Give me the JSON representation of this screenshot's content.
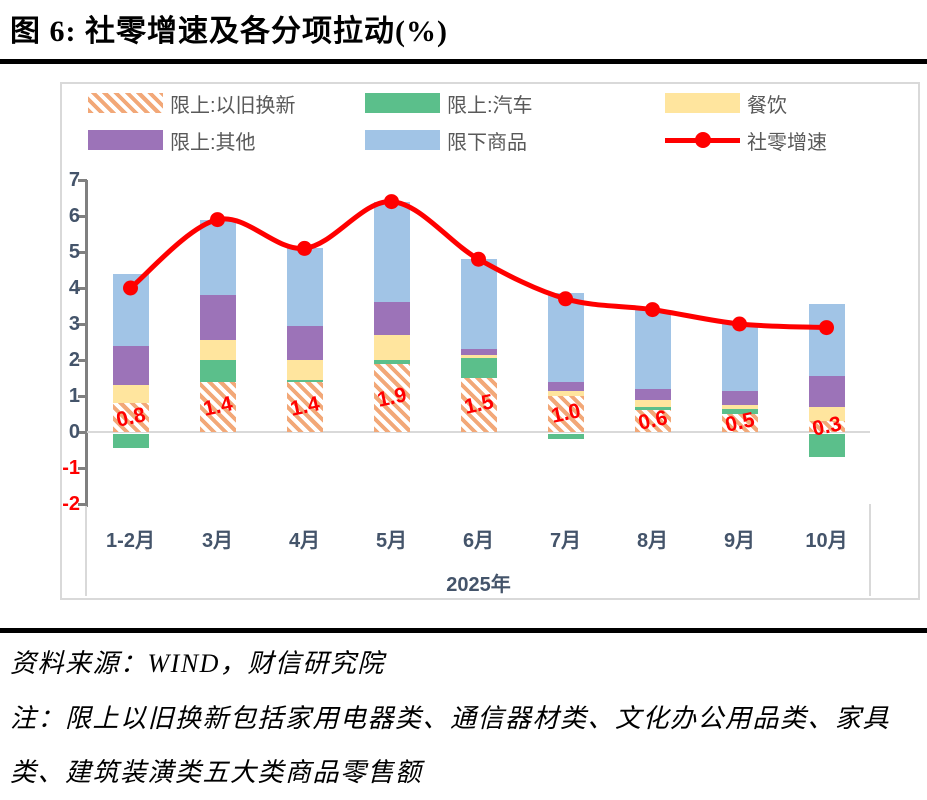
{
  "title": "图 6:  社零增速及各分项拉动(%)",
  "footer": {
    "source": "资料来源：WIND，财信研究院",
    "note": "注：限上以旧换新包括家用电器类、通信器材类、文化办公用品类、家具类、建筑装潢类五大类商品零售额"
  },
  "colors": {
    "hatch_stripe": "#F2A878",
    "green": "#5BBF8B",
    "yellow": "#FFE59E",
    "purple": "#9C73B8",
    "blue": "#A1C4E6",
    "red_line": "#FF0000",
    "axis_text": "#44546A",
    "neg_axis_text": "#FF0000",
    "legend_text": "#595959",
    "gridline": "#D9D9D9",
    "axis_line": "#808080"
  },
  "legend": {
    "items": [
      {
        "label": "限上:以旧换新",
        "swatch": "hatch",
        "color": "#F2A878"
      },
      {
        "label": "限上:汽车",
        "swatch": "solid",
        "color": "#5BBF8B"
      },
      {
        "label": "餐饮",
        "swatch": "solid",
        "color": "#FFE59E"
      },
      {
        "label": "限上:其他",
        "swatch": "solid",
        "color": "#9C73B8"
      },
      {
        "label": "限下商品",
        "swatch": "solid",
        "color": "#A1C4E6"
      },
      {
        "label": "社零增速",
        "swatch": "line",
        "color": "#FF0000"
      }
    ]
  },
  "chart_data": {
    "type": "bar",
    "subtype": "stacked-bars-with-smooth-line-overlay",
    "title": "社零增速及各分项拉动(%)",
    "categories": [
      "1-2月",
      "3月",
      "4月",
      "5月",
      "6月",
      "7月",
      "8月",
      "9月",
      "10月"
    ],
    "x_group_label": "2025年",
    "yticks": [
      7,
      6,
      5,
      4,
      3,
      2,
      1,
      0,
      -1,
      -2
    ],
    "ylim": [
      -2,
      7
    ],
    "grid": "zero-line-only",
    "legend_position": "top",
    "series": [
      {
        "name": "限上:以旧换新",
        "style": "hatched",
        "color": "#F2A878",
        "values": [
          0.8,
          1.4,
          1.4,
          1.9,
          1.5,
          1.0,
          0.6,
          0.5,
          0.3
        ]
      },
      {
        "name": "限上:汽车",
        "style": "solid",
        "color": "#5BBF8B",
        "values": [
          -0.4,
          0.6,
          0.05,
          0.1,
          0.55,
          -0.15,
          0.1,
          0.15,
          -0.65
        ]
      },
      {
        "name": "餐饮",
        "style": "solid",
        "color": "#FFE59E",
        "values": [
          0.5,
          0.55,
          0.55,
          0.7,
          0.1,
          0.15,
          0.2,
          0.1,
          0.4
        ]
      },
      {
        "name": "限上:其他",
        "style": "solid",
        "color": "#9C73B8",
        "values": [
          1.1,
          1.25,
          0.95,
          0.9,
          0.15,
          0.25,
          0.3,
          0.4,
          0.85
        ]
      },
      {
        "name": "限下商品",
        "style": "solid",
        "color": "#A1C4E6",
        "values": [
          2.0,
          2.1,
          2.15,
          2.8,
          2.5,
          2.45,
          2.2,
          1.85,
          2.0
        ]
      }
    ],
    "line_series": {
      "name": "社零增速",
      "color": "#FF0000",
      "values": [
        4.0,
        5.9,
        5.1,
        6.4,
        4.8,
        3.7,
        3.4,
        3.0,
        2.9
      ]
    },
    "bar_labels": [
      "0.8",
      "1.4",
      "1.4",
      "1.9",
      "1.5",
      "1.0",
      "0.6",
      "0.5",
      "0.3"
    ]
  }
}
